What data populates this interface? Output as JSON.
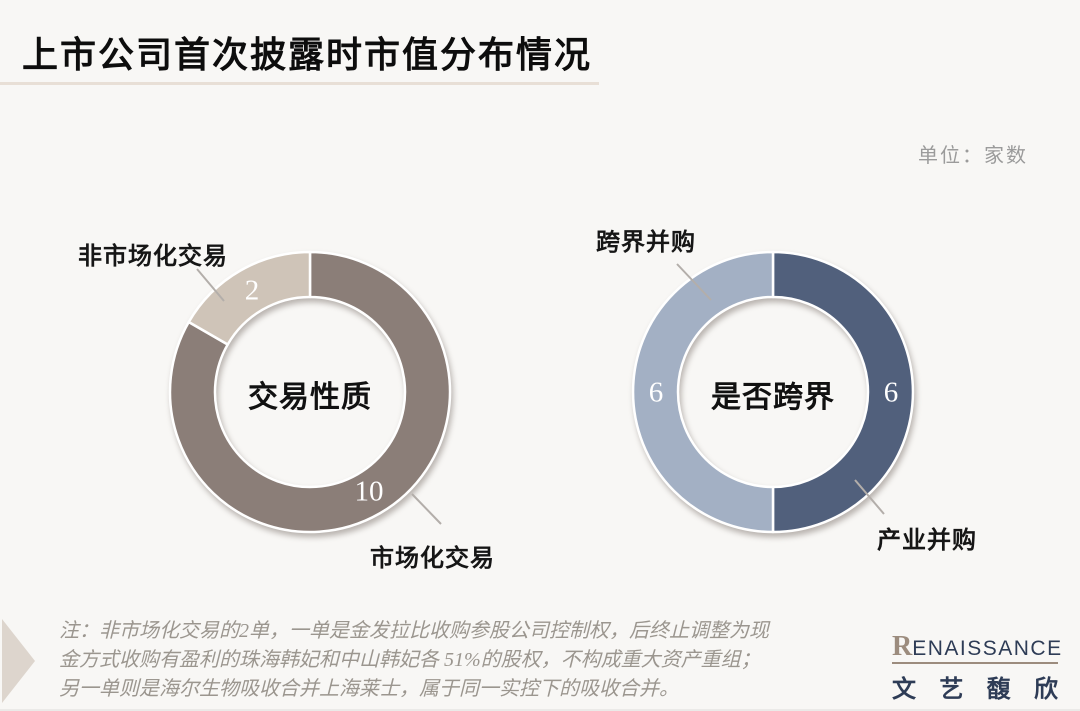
{
  "header": {
    "title": "上市公司首次披露时市值分布情况",
    "unit_label": "单位：家数"
  },
  "chart_data": [
    {
      "type": "pie",
      "style": "donut",
      "center_label": "交易性质",
      "unit": "家数",
      "total": 12,
      "legend_position": "none",
      "segments": [
        {
          "label": "市场化交易",
          "value": 10,
          "color": "#8B7E78",
          "value_color": "#ffffff"
        },
        {
          "label": "非市场化交易",
          "value": 2,
          "color": "#CFC4B8",
          "value_color": "#ffffff"
        }
      ]
    },
    {
      "type": "pie",
      "style": "donut",
      "center_label": "是否跨界",
      "unit": "家数",
      "total": 12,
      "legend_position": "none",
      "segments": [
        {
          "label": "产业并购",
          "value": 6,
          "color": "#51607C",
          "value_color": "#ffffff"
        },
        {
          "label": "跨界并购",
          "value": 6,
          "color": "#A3B0C4",
          "value_color": "#ffffff"
        }
      ]
    }
  ],
  "footnote": {
    "lines": [
      "注：非市场化交易的2单，一单是金发拉比收购参股公司控制权，后终止调整为现",
      "金方式收购有盈利的珠海韩妃和中山韩妃各 51%的股权，不构成重大资产重组；",
      "另一单则是海尔生物吸收合并上海莱士，属于同一实控下的吸收合并。"
    ]
  },
  "logo": {
    "brand_initial": "R",
    "brand_rest": "ENAISSANCE",
    "cn_chars": [
      "文",
      "艺",
      "馥",
      "欣"
    ]
  },
  "colors": {
    "background": "#f8f7f5",
    "title_underline": "#e8dfd6",
    "leader_line": "#b3aeaa",
    "note_gray": "#9b968f",
    "note_arrow": "#ddd5cd",
    "logo_navy": "#2e3c56",
    "logo_taupe": "#9c8c7e"
  }
}
